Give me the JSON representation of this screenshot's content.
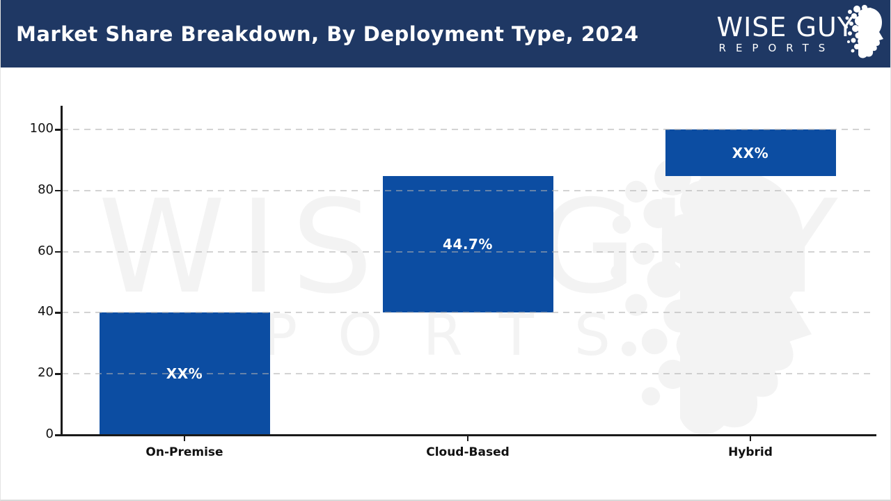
{
  "header": {
    "title": "Market Share Breakdown, By Deployment Type, 2024",
    "logo": {
      "line1": "WISE GUY",
      "line2": "REPORTS"
    }
  },
  "watermark": {
    "line1": "WISE GUY",
    "line2": "REPORTS"
  },
  "chart_data": {
    "type": "bar",
    "subtype": "waterfall",
    "title": "Market Share Breakdown, By Deployment Type, 2024",
    "categories": [
      "On-Premise",
      "Cloud-Based",
      "Hybrid"
    ],
    "bars": [
      {
        "category": "On-Premise",
        "start": 0,
        "end": 40,
        "height": 40,
        "label": "XX%"
      },
      {
        "category": "Cloud-Based",
        "start": 40,
        "end": 84.7,
        "height": 44.7,
        "label": "44.7%"
      },
      {
        "category": "Hybrid",
        "start": 84.7,
        "end": 100,
        "height": 15.3,
        "label": "XX%"
      }
    ],
    "xlabel": "",
    "ylabel": "",
    "ylim": [
      0,
      100
    ],
    "yticks": [
      0,
      20,
      40,
      60,
      80,
      100
    ],
    "grid": "dashed-horizontal",
    "legend": "none",
    "bar_color": "#0C4DA2",
    "bar_label_color": "#ffffff",
    "header_bg": "#1F3864",
    "watermark_color": "#f3f3f3"
  }
}
